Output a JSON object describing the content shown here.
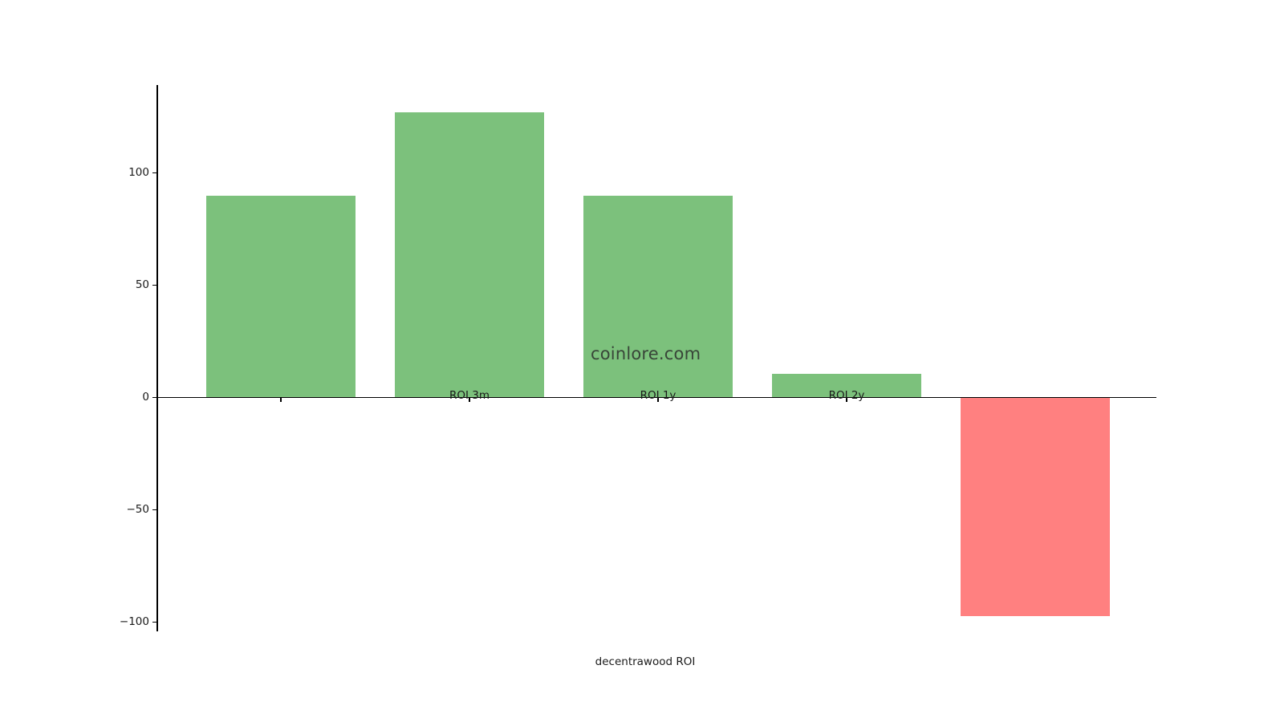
{
  "chart_data": {
    "type": "bar",
    "title": "",
    "xlabel": "decentrawood ROI",
    "ylabel": "",
    "watermark": "coinlore.com",
    "categories": [
      "",
      "ROI 3m",
      "ROI 1y",
      "ROI 2y",
      ""
    ],
    "values": [
      90,
      127,
      90,
      10.5,
      -97
    ],
    "yticks": [
      {
        "value": 100,
        "label": "100"
      },
      {
        "value": 50,
        "label": "50"
      },
      {
        "value": 0,
        "label": "0"
      },
      {
        "value": -50,
        "label": "−50"
      },
      {
        "value": -100,
        "label": "−100"
      }
    ],
    "ylim": [
      -104,
      139
    ],
    "grid": false,
    "legend": null,
    "positive_color": "#7cc17c",
    "negative_color": "#ff8080",
    "axis_color": "#000000",
    "text_color": "#1a1a1a"
  }
}
